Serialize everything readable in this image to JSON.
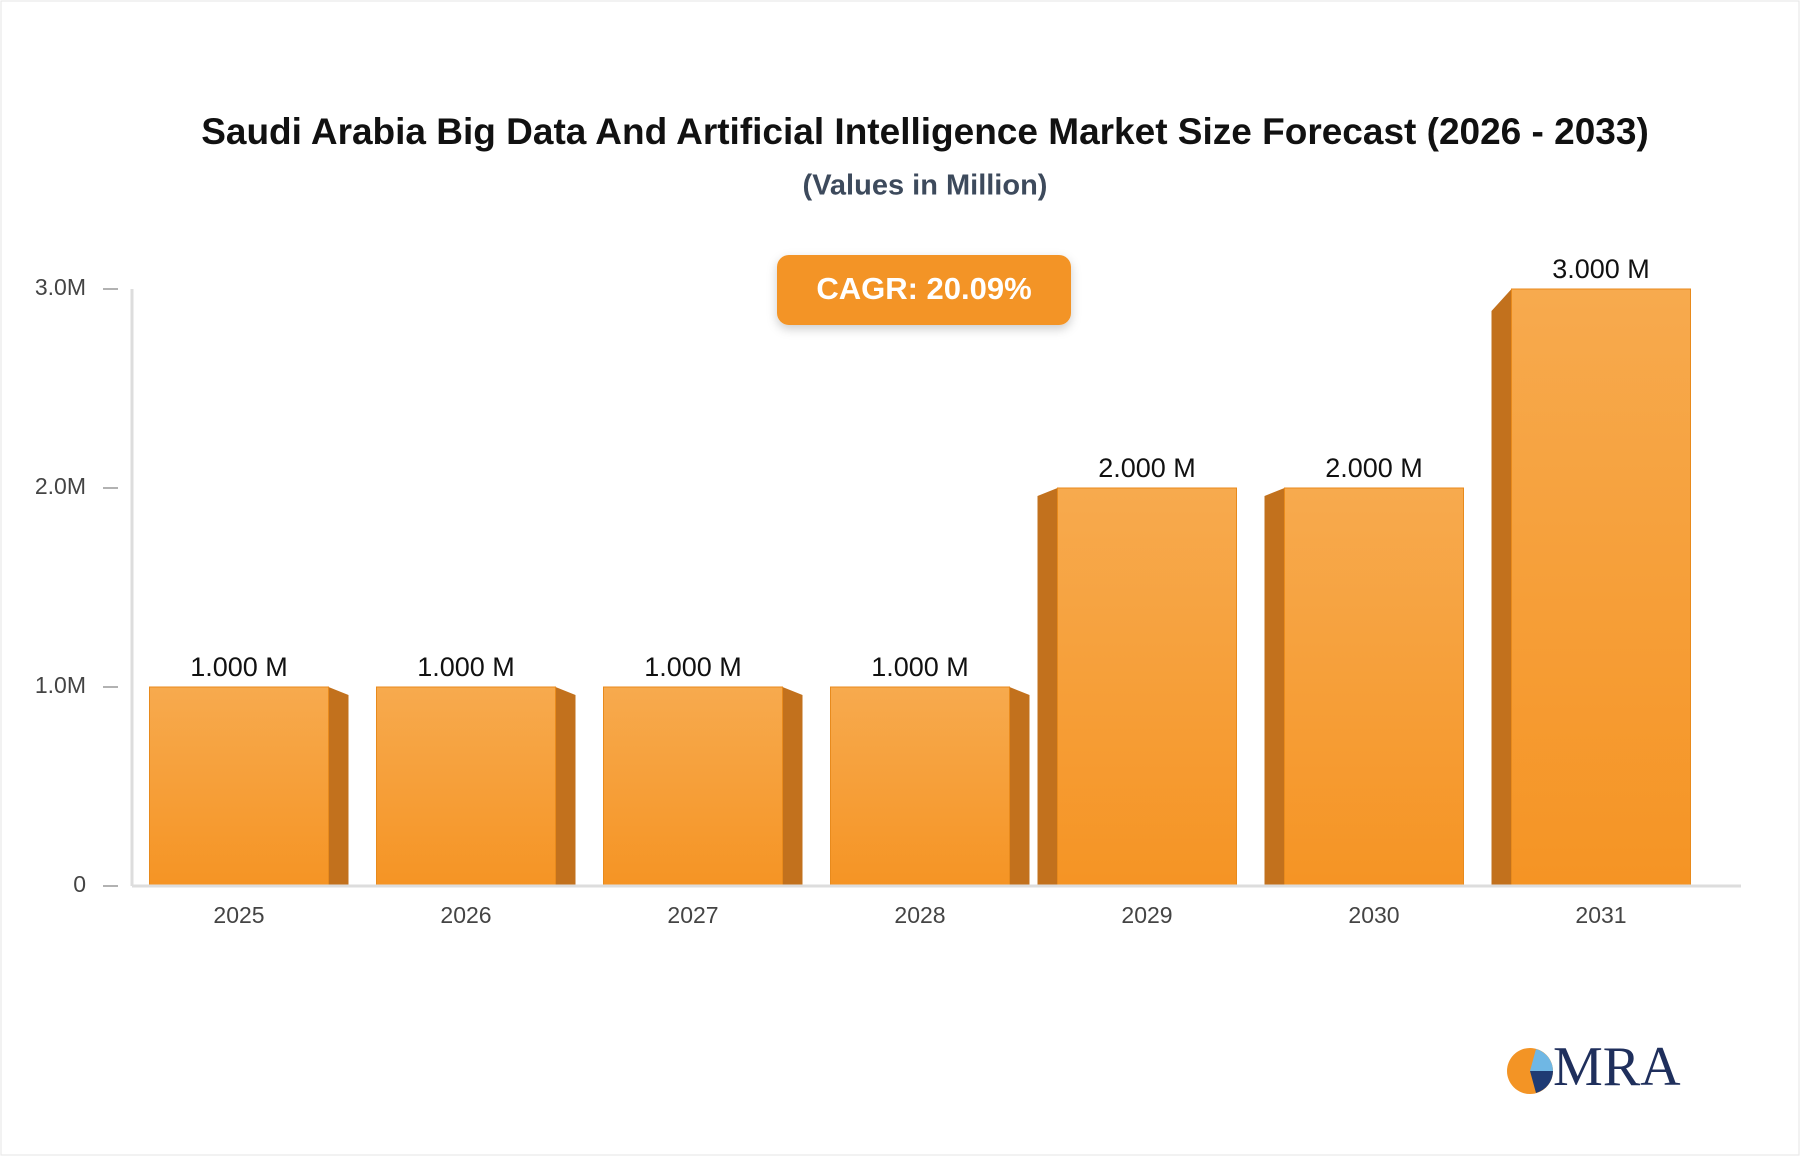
{
  "chart_data": {
    "type": "bar",
    "title": "Saudi Arabia Big Data And Artificial Intelligence Market Size Forecast (2026 - 2033)",
    "subtitle": "(Values in Million)",
    "annotation": "CAGR: 20.09%",
    "logo": "MRA",
    "categories": [
      "2025",
      "2026",
      "2027",
      "2028",
      "2029",
      "2030",
      "2031"
    ],
    "values": [
      1,
      1,
      1,
      1,
      2,
      2,
      3
    ],
    "value_labels": [
      "1.000 M",
      "1.000 M",
      "1.000 M",
      "1.000 M",
      "2.000 M",
      "2.000 M",
      "3.000 M"
    ],
    "color": "#f7a13c",
    "ylim": [
      0,
      3
    ],
    "yticks": [
      0,
      {
        "value": 1,
        "label": "1.0M"
      },
      {
        "value": 2,
        "label": "2.0M"
      },
      {
        "value": 3,
        "label": "3.0M"
      }
    ]
  }
}
